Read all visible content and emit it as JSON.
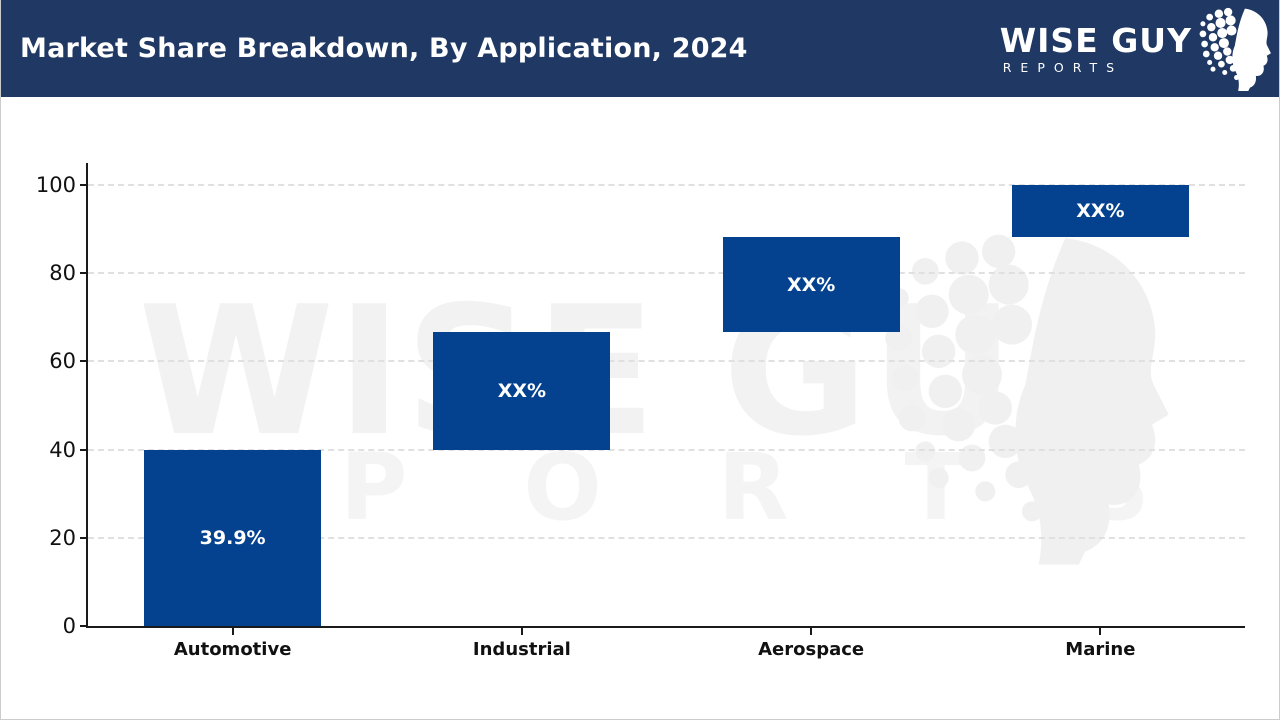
{
  "header": {
    "title": "Market Share Breakdown, By Application, 2024",
    "bg_color": "#1F3864",
    "logo": {
      "line1": "WISE GUY",
      "line2": "REPORTS"
    }
  },
  "watermark": {
    "line1": "WISE GU",
    "line2": "P O R T S"
  },
  "chart_data": {
    "type": "bar",
    "subtype": "waterfall-breakdown",
    "title": "Market Share Breakdown, By Application, 2024",
    "categories": [
      "Automotive",
      "Industrial",
      "Aerospace",
      "Marine"
    ],
    "segments": [
      {
        "category": "Automotive",
        "start": 0,
        "end": 39.9,
        "label": "39.9%"
      },
      {
        "category": "Industrial",
        "start": 39.9,
        "end": 66.6,
        "label": "XX%"
      },
      {
        "category": "Aerospace",
        "start": 66.6,
        "end": 88.1,
        "label": "XX%"
      },
      {
        "category": "Marine",
        "start": 88.1,
        "end": 100,
        "label": "XX%"
      }
    ],
    "xlabel": "",
    "ylabel": "",
    "ylim": [
      0,
      105
    ],
    "yticks": [
      0,
      20,
      40,
      60,
      80,
      100
    ],
    "grid": "horizontal-dashed",
    "legend": "none",
    "bar_color": "#04428F",
    "bar_label_color": "#FFFFFF"
  }
}
